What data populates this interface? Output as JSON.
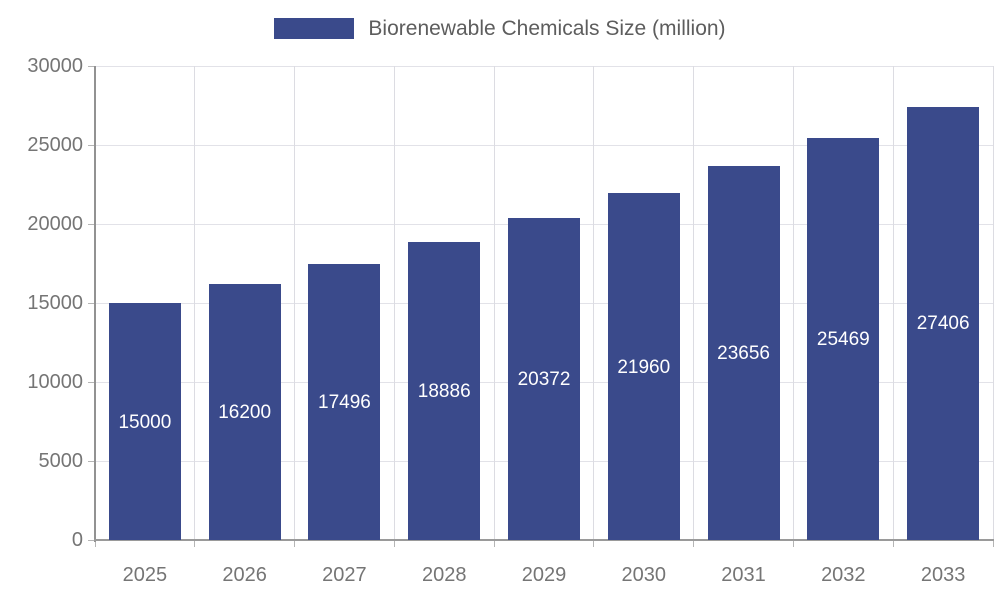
{
  "legend": {
    "label": "Biorenewable Chemicals Size (million)",
    "swatch_color": "#3A4A8B"
  },
  "chart_data": {
    "type": "bar",
    "title": "",
    "categories": [
      "2025",
      "2026",
      "2027",
      "2028",
      "2029",
      "2030",
      "2031",
      "2032",
      "2033"
    ],
    "series": [
      {
        "name": "Biorenewable Chemicals Size (million)",
        "values": [
          15000,
          16200,
          17496,
          18886,
          20372,
          21960,
          23656,
          25469,
          27406
        ]
      }
    ],
    "value_labels": [
      "15000",
      "16200",
      "17496",
      "18886",
      "20372",
      "21960",
      "23656",
      "25469",
      "27406"
    ],
    "xlabel": "",
    "ylabel": "",
    "ylim": [
      0,
      30000
    ],
    "yticks": [
      0,
      5000,
      10000,
      15000,
      20000,
      25000,
      30000
    ],
    "ytick_labels": [
      "0",
      "5000",
      "10000",
      "15000",
      "20000",
      "25000",
      "30000"
    ],
    "grid": true,
    "legend_position": "top-center",
    "bar_color": "#3A4A8B",
    "bar_label_color": "#ffffff",
    "axis_text_color": "#757575"
  }
}
